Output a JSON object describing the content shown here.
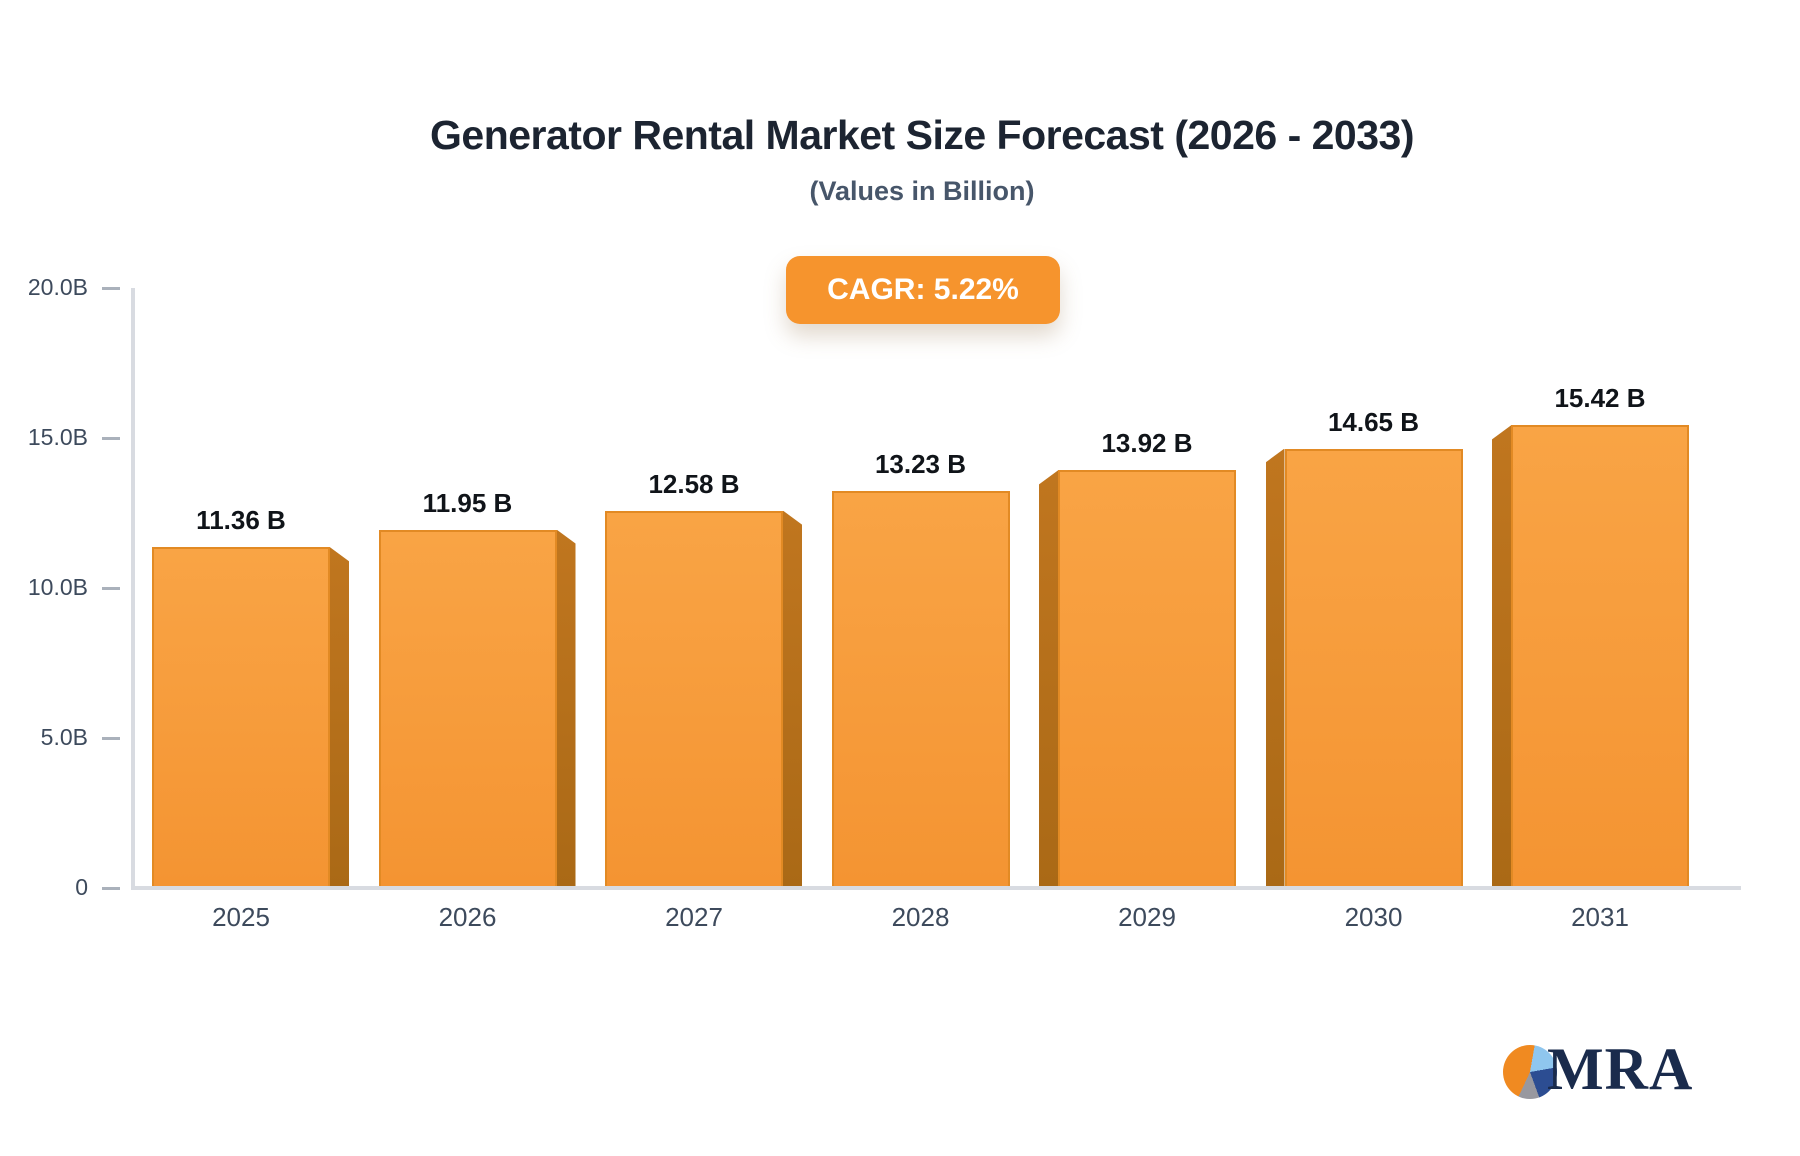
{
  "title": "Generator Rental Market Size Forecast (2026 - 2033)",
  "subtitle": "(Values in Billion)",
  "badge": {
    "label": "CAGR: 5.22%",
    "color": "#f6942d"
  },
  "chart_data": {
    "type": "bar",
    "title": "Generator Rental Market Size Forecast (2026 - 2033)",
    "subtitle": "(Values in Billion)",
    "categories": [
      "2025",
      "2026",
      "2027",
      "2028",
      "2029",
      "2030",
      "2031"
    ],
    "values": [
      11.36,
      11.95,
      12.58,
      13.23,
      13.92,
      14.65,
      15.42
    ],
    "data_labels": [
      "11.36 B",
      "11.95 B",
      "12.58 B",
      "13.23 B",
      "13.92 B",
      "14.65 B",
      "15.42 B"
    ],
    "y_ticks": [
      {
        "label": "20.0B",
        "value": 20
      },
      {
        "label": "15.0B",
        "value": 15
      },
      {
        "label": "10.0B",
        "value": 10
      },
      {
        "label": "5.0B",
        "value": 5
      },
      {
        "label": "0",
        "value": 0
      }
    ],
    "ylim": [
      0,
      20
    ],
    "xlabel": "",
    "ylabel": "",
    "grid": false,
    "legend": false,
    "cagr": "5.22%",
    "bar_color": "#f79a38",
    "bar_side_color": "#b56f1b",
    "axis_color": "#d8dbe1",
    "label_color": "#3d4a5c"
  },
  "logo": {
    "text": "MRA",
    "pie_colors": {
      "orange": "#f08a21",
      "light_blue": "#8fc6ee",
      "navy": "#2c4d92",
      "gray": "#98989f"
    }
  }
}
